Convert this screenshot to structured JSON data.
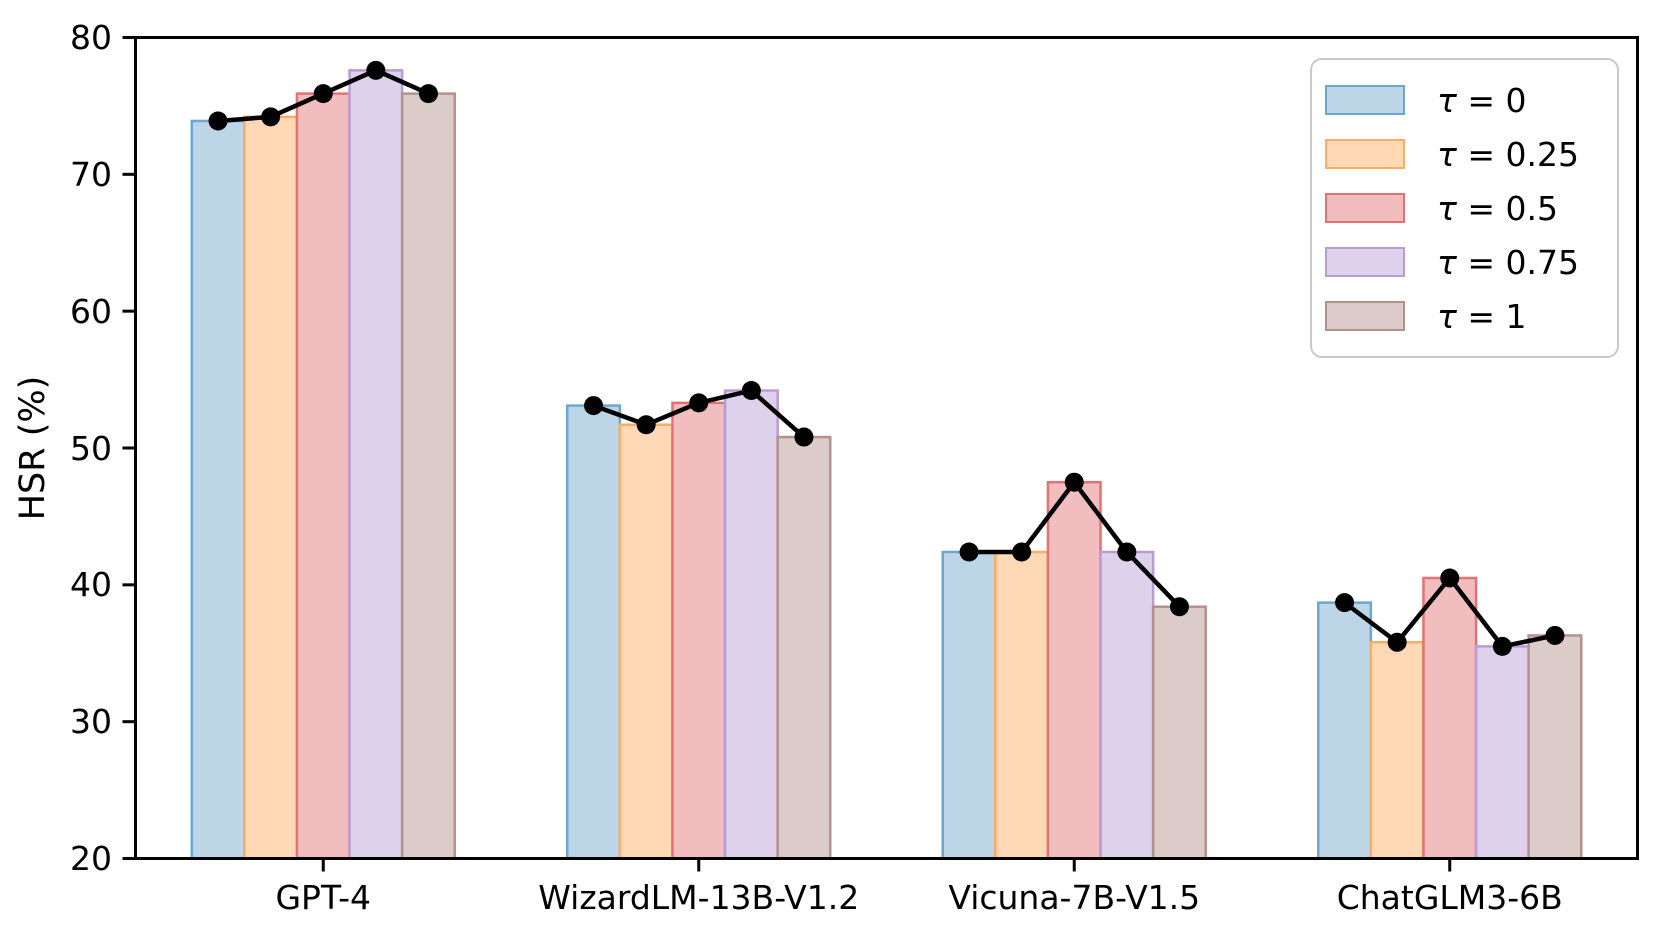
{
  "figure": {
    "background": "#ffffff",
    "axis_color": "#000000"
  },
  "chart_data": {
    "type": "bar",
    "title": "",
    "xlabel": "",
    "ylabel": "HSR (%)",
    "ylim": [
      20,
      80
    ],
    "yticks": [
      20,
      30,
      40,
      50,
      60,
      70,
      80
    ],
    "grid": false,
    "legend_position": "upper-right",
    "categories": [
      "GPT-4",
      "WizardLM-13B-V1.2",
      "Vicuna-7B-V1.5",
      "ChatGLM3-6B"
    ],
    "series": [
      {
        "label": "τ = 0",
        "label_symbol": "τ",
        "label_rest": " = 0",
        "fill": "#bcd6e8",
        "edge": "#6da6ce",
        "values": [
          73.9,
          53.1,
          42.4,
          38.7
        ]
      },
      {
        "label": "τ = 0.25",
        "label_symbol": "τ",
        "label_rest": " = 0.25",
        "fill": "#ffd8b6",
        "edge": "#ffab62",
        "values": [
          74.2,
          51.7,
          42.4,
          35.8
        ]
      },
      {
        "label": "τ = 0.5",
        "label_symbol": "τ",
        "label_rest": " = 0.5",
        "fill": "#f2bdbe",
        "edge": "#e47273",
        "values": [
          75.9,
          53.3,
          47.5,
          40.5
        ]
      },
      {
        "label": "τ = 0.75",
        "label_symbol": "τ",
        "label_rest": " = 0.75",
        "fill": "#ded1eb",
        "edge": "#b99cd4",
        "values": [
          77.6,
          54.2,
          42.4,
          35.5
        ]
      },
      {
        "label": "τ = 1",
        "label_symbol": "τ",
        "label_rest": " = 1",
        "fill": "#dcccc9",
        "edge": "#b4918a",
        "values": [
          75.9,
          50.8,
          38.4,
          36.3
        ]
      }
    ],
    "overlay_line": {
      "color": "#000000",
      "linewidth": 4.5,
      "marker": "circle",
      "marker_radius": 9.5,
      "description": "black line with dots connecting bar tops within each category group"
    }
  }
}
